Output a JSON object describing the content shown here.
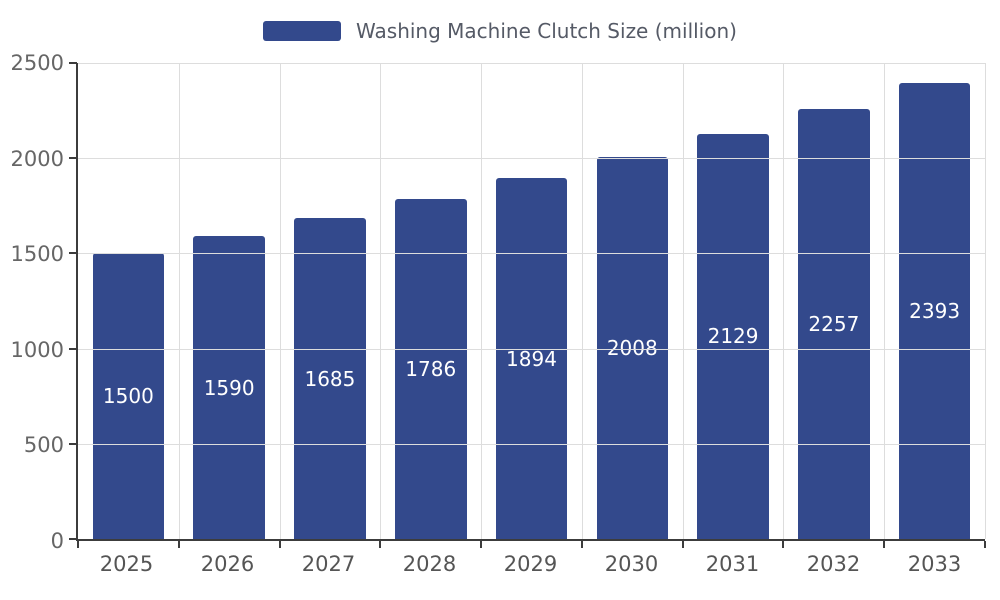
{
  "chart_data": {
    "type": "bar",
    "title": "Washing Machine Clutch Size (million)",
    "categories": [
      "2025",
      "2026",
      "2027",
      "2028",
      "2029",
      "2030",
      "2031",
      "2032",
      "2033"
    ],
    "values": [
      1500,
      1590,
      1685,
      1786,
      1894,
      2008,
      2129,
      2257,
      2393
    ],
    "xlabel": "",
    "ylabel": "",
    "ylim": [
      0,
      2500
    ],
    "ytick_step": 500,
    "yticks": [
      0,
      500,
      1000,
      1500,
      2000,
      2500
    ],
    "bar_color": "#33498c",
    "value_label_color": "#ffffff",
    "grid": true,
    "legend_position": "top"
  }
}
